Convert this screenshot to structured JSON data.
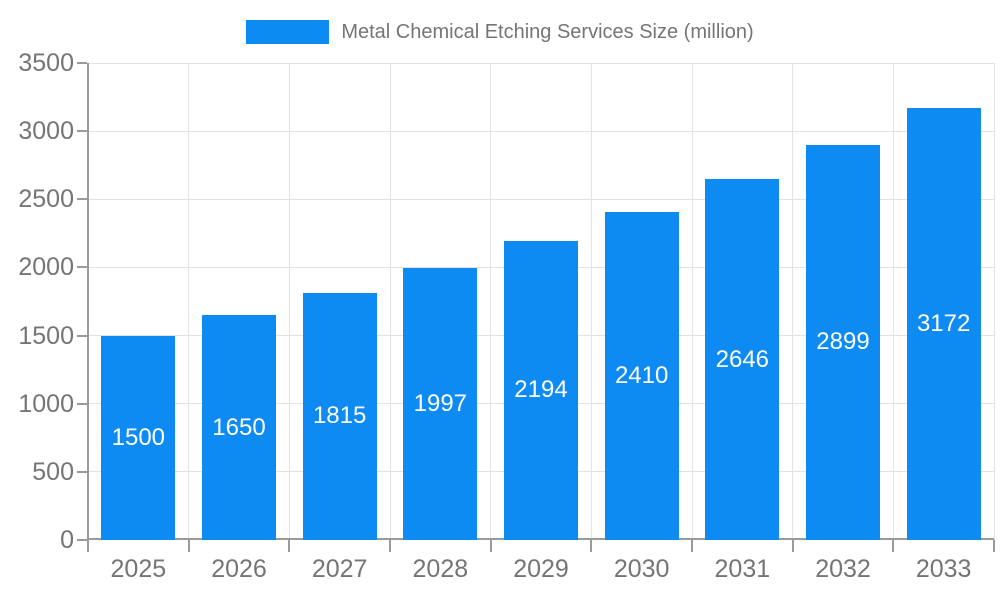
{
  "chart_data": {
    "type": "bar",
    "title": "Metal Chemical Etching Services Size (million)",
    "categories": [
      "2025",
      "2026",
      "2027",
      "2028",
      "2029",
      "2030",
      "2031",
      "2032",
      "2033"
    ],
    "values": [
      1500,
      1650,
      1815,
      1997,
      2194,
      2410,
      2646,
      2899,
      3172
    ],
    "xlabel": "",
    "ylabel": "",
    "ylim": [
      0,
      3500
    ],
    "yticks": [
      0,
      500,
      1000,
      1500,
      2000,
      2500,
      3000,
      3500
    ],
    "grid": true,
    "legend_position": "top-center",
    "value_label_position": "inside-center",
    "colors": {
      "bar": "#0d8bf2",
      "bar_value_text": "#ffffff",
      "axis_text": "#757575",
      "gridline": "#e3e3e3",
      "axis_line": "#9a9a9a",
      "background": "#ffffff"
    }
  }
}
